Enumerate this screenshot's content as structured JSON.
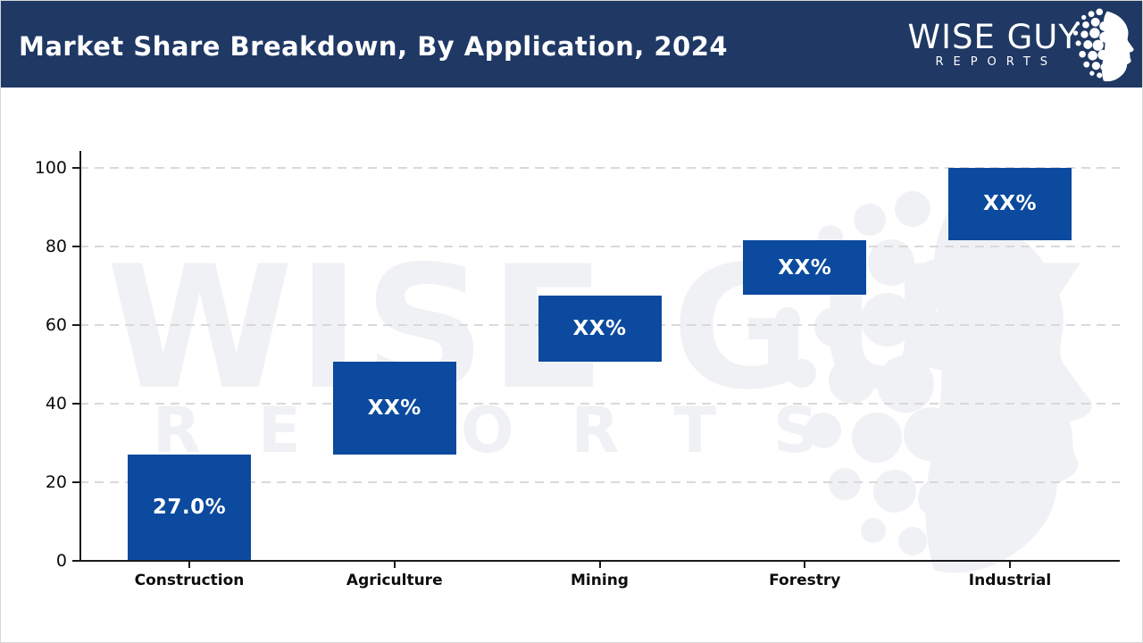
{
  "header": {
    "title": "Market Share Breakdown, By Application, 2024",
    "logo": {
      "line1": "WISE GUY",
      "line2": "REPORTS"
    }
  },
  "watermark": {
    "line1": "WISE GUY",
    "line2": "REPORTS"
  },
  "chart_data": {
    "type": "bar",
    "subtype": "waterfall",
    "title": "Market Share Breakdown, By Application, 2024",
    "xlabel": "",
    "ylabel": "",
    "ylim": [
      0,
      105
    ],
    "yticks": [
      0,
      20,
      40,
      60,
      80,
      100
    ],
    "grid": "horizontal dashed",
    "legend": "none",
    "categories": [
      "Construction",
      "Agriculture",
      "Mining",
      "Forestry",
      "Industrial"
    ],
    "segments": [
      {
        "category": "Construction",
        "start": 0,
        "end": 27,
        "value": 27.0,
        "label": "27.0%"
      },
      {
        "category": "Agriculture",
        "start": 27,
        "end": 50.5,
        "value": 23.5,
        "label": "XX%"
      },
      {
        "category": "Mining",
        "start": 50.5,
        "end": 67.5,
        "value": 17.0,
        "label": "XX%"
      },
      {
        "category": "Forestry",
        "start": 67.5,
        "end": 81.5,
        "value": 14.0,
        "label": "XX%"
      },
      {
        "category": "Industrial",
        "start": 81.5,
        "end": 100,
        "value": 18.5,
        "label": "XX%"
      }
    ],
    "colors": {
      "bar": "#0b4a9e",
      "bar_label": "#ffffff",
      "header_background": "#1f3864",
      "header_text": "#ffffff",
      "gridline": "#d9d9d9",
      "axis": "#1a1a1a",
      "watermark": "#f0f1f4"
    }
  }
}
